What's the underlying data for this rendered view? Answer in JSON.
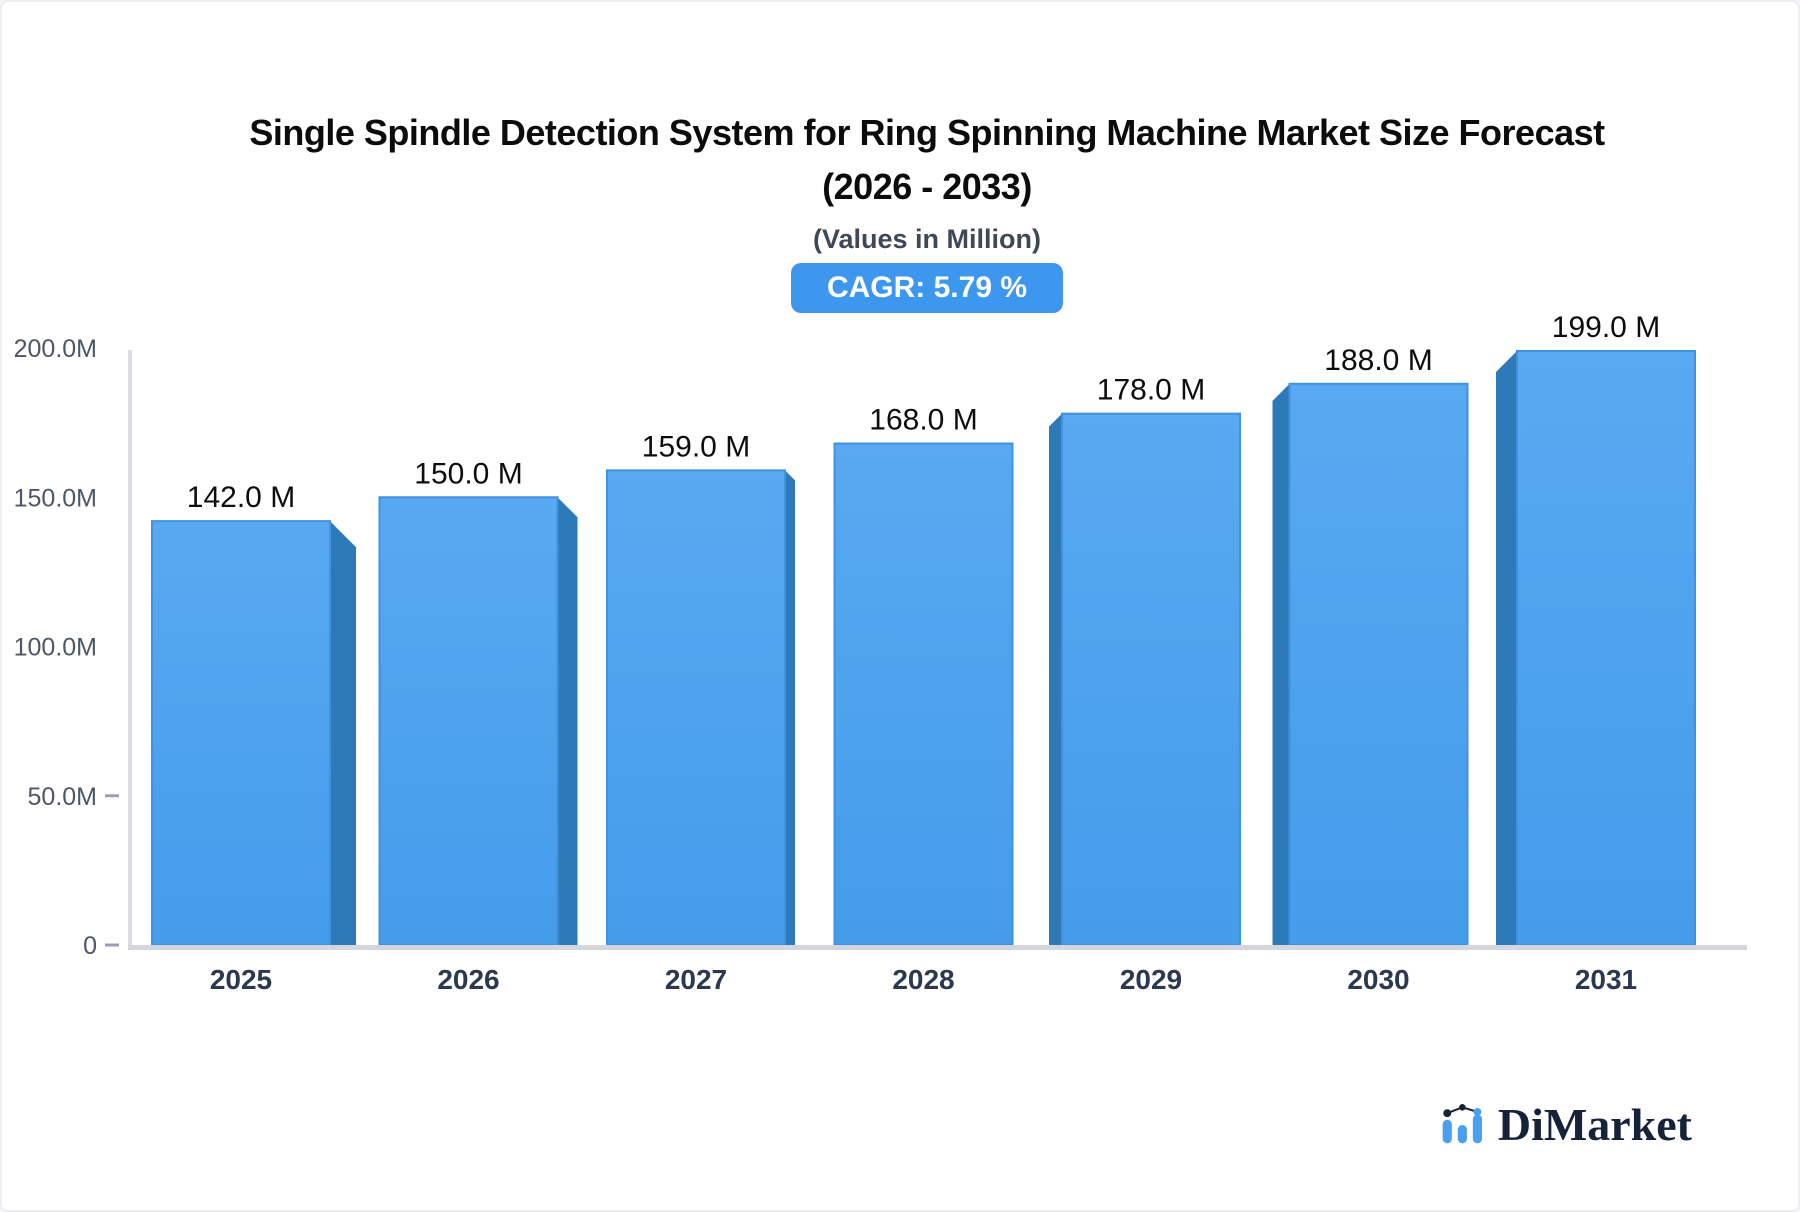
{
  "header": {
    "title_line1": "Single Spindle Detection System for Ring Spinning Machine Market Size Forecast",
    "title_line2": "(2026 - 2033)",
    "subtitle": "(Values in Million)",
    "cagr_badge": "CAGR: 5.79 %",
    "badge_color": "#3e97ef"
  },
  "chart_data": {
    "type": "bar",
    "title": "Single Spindle Detection System for Ring Spinning Machine Market Size Forecast (2026 - 2033)",
    "subtitle": "(Values in Million)",
    "categories": [
      "2025",
      "2026",
      "2027",
      "2028",
      "2029",
      "2030",
      "2031"
    ],
    "values": [
      142,
      150,
      159,
      168,
      178,
      188,
      199
    ],
    "value_labels": [
      "142.0 M",
      "150.0 M",
      "159.0 M",
      "168.0 M",
      "178.0 M",
      "188.0 M",
      "199.0 M"
    ],
    "ylim": [
      0,
      200
    ],
    "ytick_values": [
      0,
      50,
      100,
      150,
      200
    ],
    "ytick_labels": [
      "0",
      "50.0M",
      "100.0M",
      "150.0M",
      "200.0M"
    ],
    "ytick_dash": [
      true,
      true,
      false,
      false,
      false
    ],
    "grid": "off",
    "legend": "none",
    "effect": "3d-perspective-bars",
    "colors": {
      "face_top": "#58a9f1",
      "face_bottom": "#449ceb",
      "side": "#2e7ab9",
      "face_border": "#3f92e0",
      "axis_line": "#dbdde2",
      "baseline": "#d3d6dc",
      "tick_dash": "#9aa0ab"
    }
  },
  "footer": {
    "logo_text": "DiMarket",
    "logo_icon": "bar-chart-line-icon",
    "logo_text_color": "#152238",
    "logo_icon_color": "#4aa0f0"
  }
}
